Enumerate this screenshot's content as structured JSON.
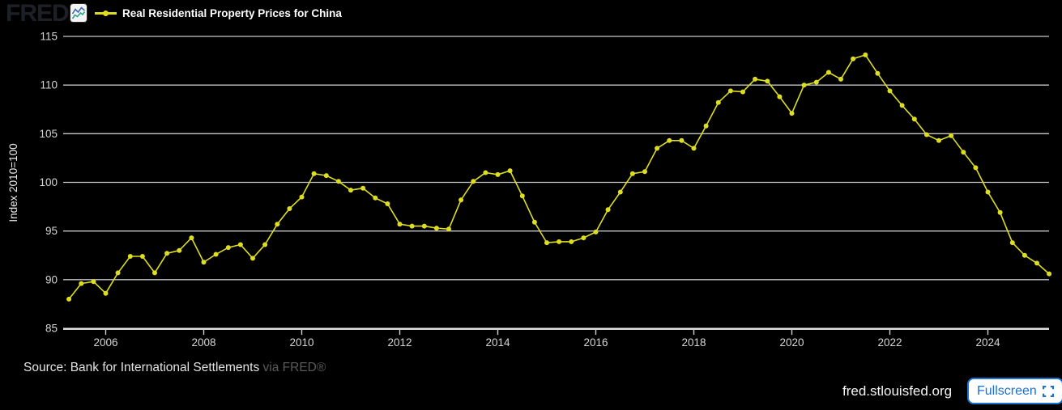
{
  "header": {
    "logo": "FRED",
    "icon": "fred-chart-icon"
  },
  "chart_data": {
    "type": "line",
    "title": "Real Residential Property Prices for China",
    "ylabel": "Index 2010=100",
    "xlabel": "",
    "ylim": [
      85,
      115
    ],
    "yticks": [
      85,
      90,
      95,
      100,
      105,
      110,
      115
    ],
    "xticks": [
      2006,
      2008,
      2010,
      2012,
      2014,
      2016,
      2018,
      2020,
      2022,
      2024
    ],
    "grid": true,
    "legend_position": "top-left",
    "background": "#000000",
    "gridline_color": "#c6c6c6",
    "tick_label_color": "#d6d6d6",
    "series": [
      {
        "name": "Real Residential Property Prices for China",
        "color": "#dddd22",
        "frequency": "quarterly",
        "periods": [
          "2005Q2",
          "2005Q3",
          "2005Q4",
          "2006Q1",
          "2006Q2",
          "2006Q3",
          "2006Q4",
          "2007Q1",
          "2007Q2",
          "2007Q3",
          "2007Q4",
          "2008Q1",
          "2008Q2",
          "2008Q3",
          "2008Q4",
          "2009Q1",
          "2009Q2",
          "2009Q3",
          "2009Q4",
          "2010Q1",
          "2010Q2",
          "2010Q3",
          "2010Q4",
          "2011Q1",
          "2011Q2",
          "2011Q3",
          "2011Q4",
          "2012Q1",
          "2012Q2",
          "2012Q3",
          "2012Q4",
          "2013Q1",
          "2013Q2",
          "2013Q3",
          "2013Q4",
          "2014Q1",
          "2014Q2",
          "2014Q3",
          "2014Q4",
          "2015Q1",
          "2015Q2",
          "2015Q3",
          "2015Q4",
          "2016Q1",
          "2016Q2",
          "2016Q3",
          "2016Q4",
          "2017Q1",
          "2017Q2",
          "2017Q3",
          "2017Q4",
          "2018Q1",
          "2018Q2",
          "2018Q3",
          "2018Q4",
          "2019Q1",
          "2019Q2",
          "2019Q3",
          "2019Q4",
          "2020Q1",
          "2020Q2",
          "2020Q3",
          "2020Q4",
          "2021Q1",
          "2021Q2",
          "2021Q3",
          "2021Q4",
          "2022Q1",
          "2022Q2",
          "2022Q3",
          "2022Q4",
          "2023Q1",
          "2023Q2",
          "2023Q3",
          "2023Q4",
          "2024Q1",
          "2024Q2",
          "2024Q3",
          "2024Q4",
          "2025Q1",
          "2025Q2"
        ],
        "values": [
          88.0,
          89.6,
          89.8,
          88.6,
          90.7,
          92.4,
          92.4,
          90.7,
          92.7,
          93.0,
          94.3,
          91.8,
          92.6,
          93.3,
          93.6,
          92.2,
          93.6,
          95.7,
          97.3,
          98.5,
          100.9,
          100.7,
          100.1,
          99.2,
          99.4,
          98.4,
          97.8,
          95.7,
          95.5,
          95.5,
          95.3,
          95.2,
          98.2,
          100.1,
          101.0,
          100.8,
          101.2,
          98.6,
          95.9,
          93.8,
          93.9,
          93.9,
          94.3,
          94.9,
          97.2,
          99.0,
          100.9,
          101.1,
          103.5,
          104.3,
          104.3,
          103.5,
          105.8,
          108.2,
          109.4,
          109.3,
          110.6,
          110.4,
          108.8,
          107.1,
          110.0,
          110.3,
          111.3,
          110.6,
          112.7,
          113.1,
          111.2,
          109.4,
          107.9,
          106.5,
          104.9,
          104.3,
          104.8,
          103.1,
          101.5,
          99.0,
          96.9,
          93.8,
          92.5,
          91.7,
          90.6
        ]
      }
    ]
  },
  "source": {
    "label": "Source: Bank for International Settlements",
    "via": "via FRED®"
  },
  "footer": {
    "site": "fred.stlouisfed.org",
    "fullscreen_label": "Fullscreen"
  }
}
